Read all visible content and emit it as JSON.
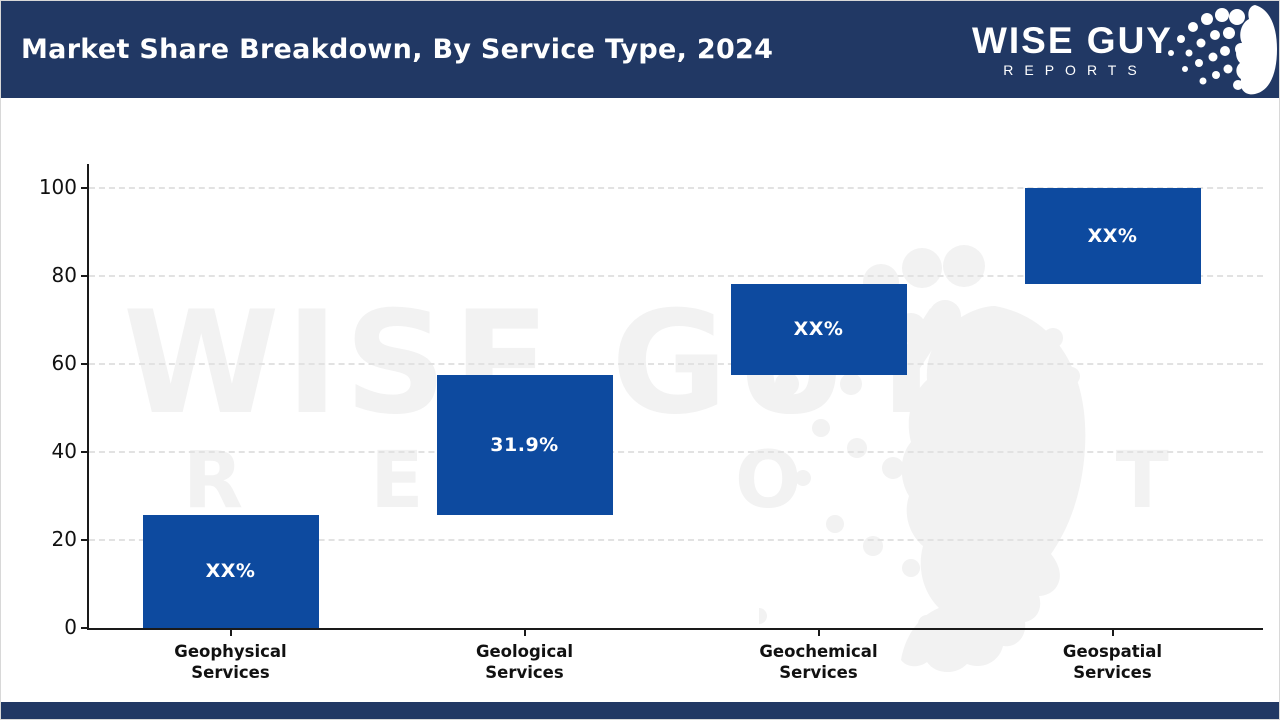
{
  "header": {
    "title": "Market Share Breakdown, By Service Type, 2024",
    "logo": {
      "line1": "WISE GUY",
      "line2": "REPORTS"
    }
  },
  "watermark": {
    "line1": "WISE GUY",
    "line2": "R E P O R T S"
  },
  "colors": {
    "header_bg": "#213864",
    "bar": "#0d4a9f",
    "grid": "#e2e2e2",
    "axis": "#1a1a1a",
    "watermark": "#f2f2f2",
    "bar_label_text": "#ffffff",
    "title_text": "#ffffff"
  },
  "chart_data": {
    "type": "bar",
    "subtype": "waterfall",
    "title": "Market Share Breakdown, By Service Type, 2024",
    "categories": [
      "Geophysical Services",
      "Geological Services",
      "Geochemical Services",
      "Geospatial Services"
    ],
    "categories_lines": [
      [
        "Geophysical",
        "Services"
      ],
      [
        "Geological",
        "Services"
      ],
      [
        "Geochemical",
        "Services"
      ],
      [
        "Geospatial",
        "Services"
      ]
    ],
    "segments": [
      {
        "category": "Geophysical Services",
        "start": 0,
        "end": 25.7,
        "value": 25.7,
        "label": "XX%"
      },
      {
        "category": "Geological Services",
        "start": 25.7,
        "end": 57.6,
        "value": 31.9,
        "label": "31.9%"
      },
      {
        "category": "Geochemical Services",
        "start": 57.6,
        "end": 78.2,
        "value": 20.6,
        "label": "XX%"
      },
      {
        "category": "Geospatial Services",
        "start": 78.2,
        "end": 100,
        "value": 21.8,
        "label": "XX%"
      }
    ],
    "xlabel": "",
    "ylabel": "",
    "ylim": [
      0,
      100
    ],
    "yticks": [
      0,
      20,
      40,
      60,
      80,
      100
    ],
    "grid": "horizontal-dashed",
    "legend": "none"
  }
}
